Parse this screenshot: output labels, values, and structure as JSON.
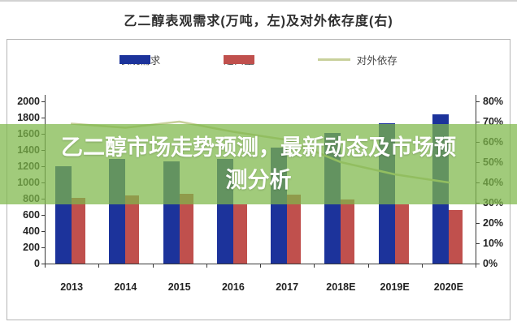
{
  "title": "乙二醇表观需求(万吨，左)及对外依存度(右)",
  "overlay": {
    "text": "乙二醇市场走势预测，最新动态及市场预测分析"
  },
  "legend": [
    {
      "label": "表观需求",
      "kind": "bar",
      "color": "#1c339b"
    },
    {
      "label": "进口量",
      "kind": "bar",
      "color": "#c0504d"
    },
    {
      "label": "对外依存",
      "kind": "line",
      "color": "#c8d09b"
    }
  ],
  "colors": {
    "demand_bar": "#1c339b",
    "import_bar": "#c0504d",
    "dependency_line": "#c8d09b",
    "overlay_band": "rgba(126,184,74,0.73)"
  },
  "chart_data": {
    "type": "combo",
    "categories": [
      "2013",
      "2014",
      "2015",
      "2016",
      "2017",
      "2018E",
      "2019E",
      "2020E"
    ],
    "series": [
      {
        "name": "表观需求",
        "type": "bar",
        "axis": "left",
        "color": "#1c339b",
        "values": [
          1200,
          1290,
          1260,
          1290,
          1430,
          1610,
          1730,
          1840
        ]
      },
      {
        "name": "进口量",
        "type": "bar",
        "axis": "left",
        "color": "#c0504d",
        "values": [
          810,
          840,
          860,
          730,
          850,
          790,
          730,
          660
        ]
      },
      {
        "name": "对外依存",
        "type": "line",
        "axis": "right",
        "color": "#c8d09b",
        "values": [
          69,
          67,
          70,
          65,
          61,
          50,
          44,
          40
        ]
      }
    ],
    "title": "乙二醇表观需求(万吨，左)及对外依存度(右)",
    "left_axis": {
      "min": 0,
      "max": 2000,
      "step": 200,
      "suffix": ""
    },
    "right_axis": {
      "min": 0,
      "max": 80,
      "step": 10,
      "suffix": "%"
    },
    "legend_position": "top",
    "grid": false
  }
}
